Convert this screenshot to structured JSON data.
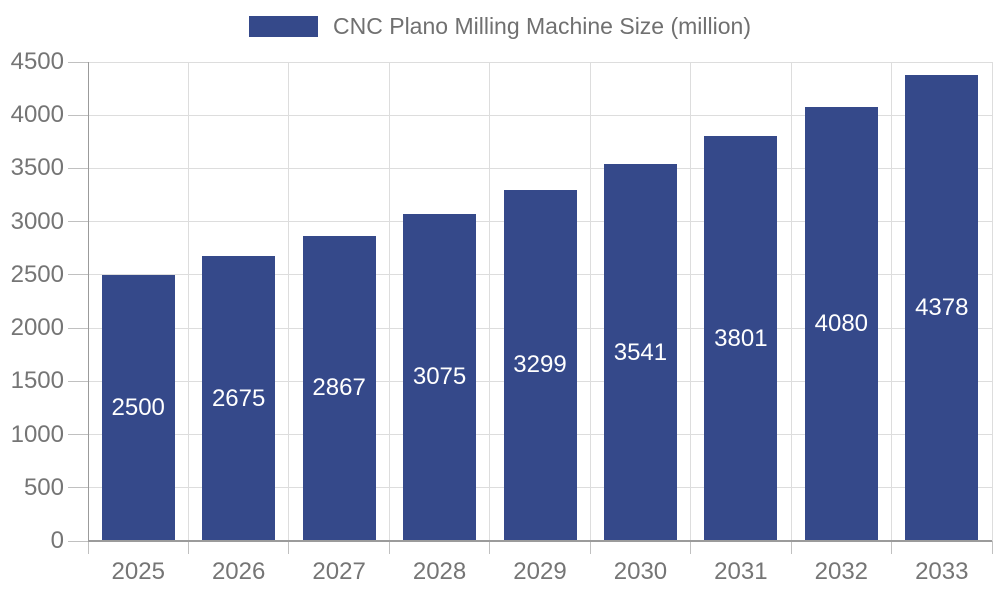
{
  "legend": {
    "label": "CNC Plano Milling Machine Size (million)"
  },
  "chart_data": {
    "type": "bar",
    "title": "",
    "series_name": "CNC Plano Milling Machine Size (million)",
    "categories": [
      "2025",
      "2026",
      "2027",
      "2028",
      "2029",
      "2030",
      "2031",
      "2032",
      "2033"
    ],
    "values": [
      2500,
      2675,
      2867,
      3075,
      3299,
      3541,
      3801,
      4080,
      4378
    ],
    "xlabel": "",
    "ylabel": "",
    "ylim": [
      0,
      4500
    ],
    "yticks": [
      0,
      500,
      1000,
      1500,
      2000,
      2500,
      3000,
      3500,
      4000,
      4500
    ],
    "grid": true,
    "legend_position": "top-center",
    "bar_labels_inside": true,
    "colors": {
      "bar": "#35498a",
      "bar_label": "#ffffff",
      "grid_line": "#dddddd",
      "axis_line": "#9b9b9b",
      "tick_line": "#c0c0c0",
      "tick_label": "#757575",
      "legend_text": "#707070",
      "background": "#ffffff"
    }
  }
}
